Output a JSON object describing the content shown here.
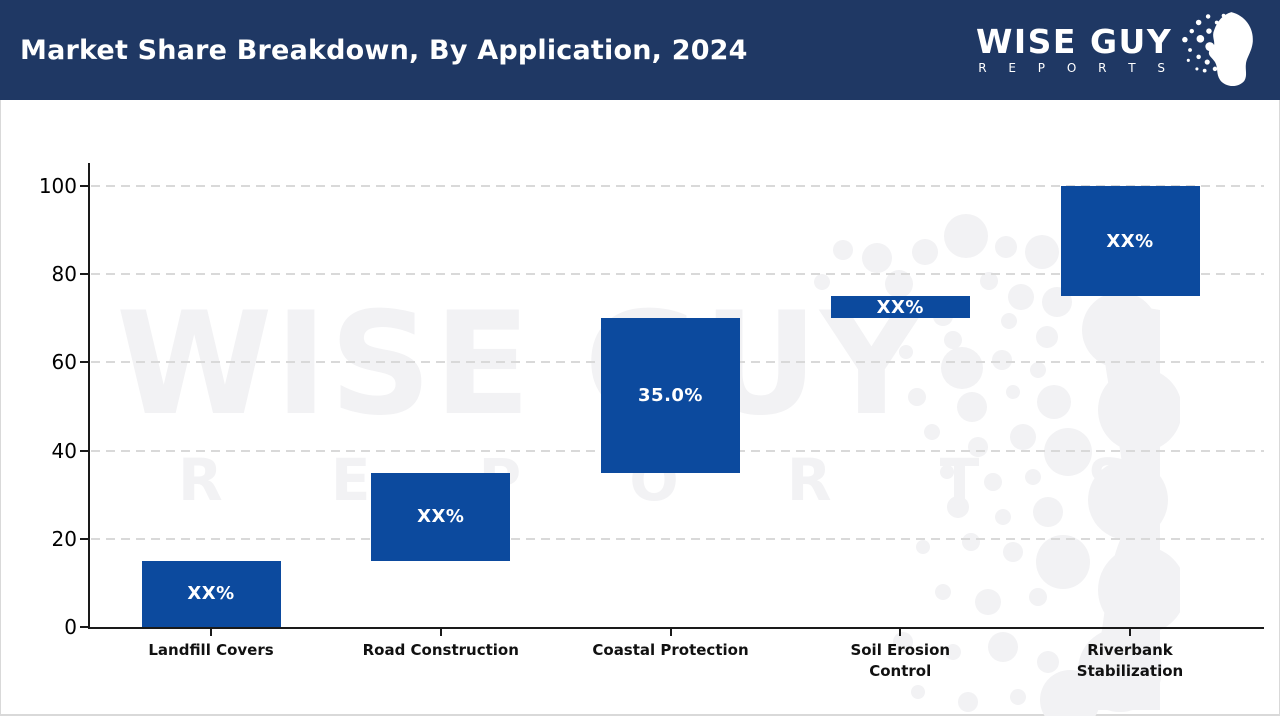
{
  "header": {
    "title": "Market Share Breakdown, By Application, 2024",
    "logo": {
      "name": "WISE GUY",
      "sub": "R E P O R T S"
    }
  },
  "watermark": {
    "line1": "WISE GUY",
    "line2": "R E P O R T S"
  },
  "colors": {
    "header_bg": "#1f3864",
    "bar": "#0c4a9e",
    "bar_label": "#ffffff",
    "axis": "#1a1a1a",
    "grid": "#d9d9d9",
    "watermark": "#f2f2f4"
  },
  "chart_data": {
    "type": "bar",
    "subtype": "waterfall",
    "title": "Market Share Breakdown, By Application, 2024",
    "xlabel": "",
    "ylabel": "",
    "ylim": [
      0,
      100
    ],
    "yticks": [
      0,
      20,
      40,
      60,
      80,
      100
    ],
    "grid": "dashed-horizontal",
    "legend": "none",
    "categories": [
      "Landfill Covers",
      "Road Construction",
      "Coastal Protection",
      "Soil Erosion\nControl",
      "Riverbank\nStabilization"
    ],
    "bars": [
      {
        "category": "Landfill Covers",
        "start": 0,
        "end": 15,
        "label": "XX%"
      },
      {
        "category": "Road Construction",
        "start": 15,
        "end": 35,
        "label": "XX%"
      },
      {
        "category": "Coastal Protection",
        "start": 35,
        "end": 70,
        "label": "35.0%"
      },
      {
        "category": "Soil Erosion Control",
        "start": 70,
        "end": 75,
        "label": "XX%"
      },
      {
        "category": "Riverbank Stabilization",
        "start": 75,
        "end": 100,
        "label": "XX%"
      }
    ]
  }
}
